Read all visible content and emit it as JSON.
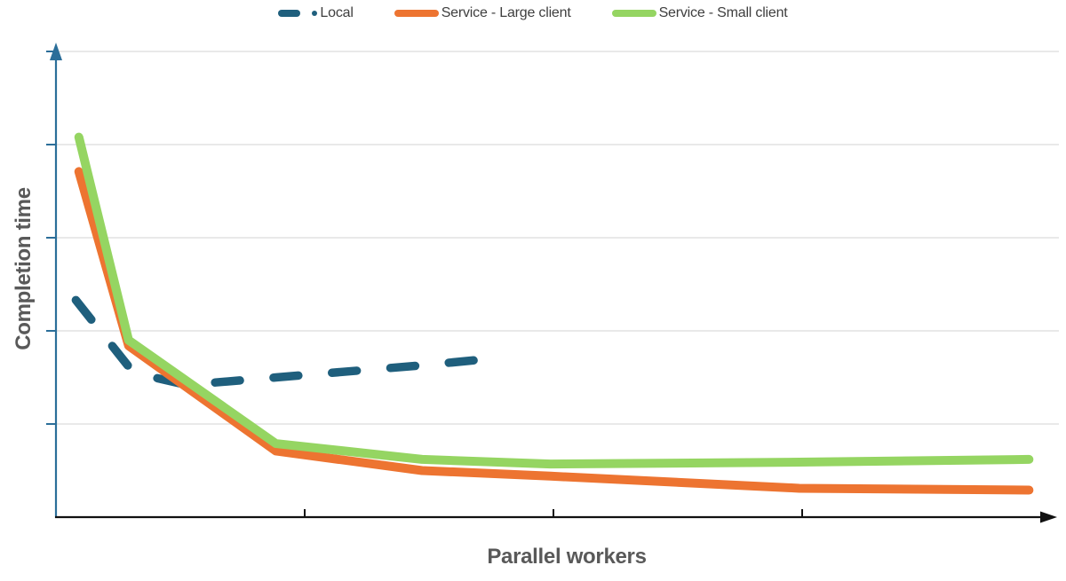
{
  "chart": {
    "legend": [
      {
        "label": "Local",
        "color": "#1F5F7D",
        "marker": "dash-dot"
      },
      {
        "label": "Service - Large client",
        "color": "#ED7431",
        "marker": "bar"
      },
      {
        "label": "Service - Small client",
        "color": "#95D562",
        "marker": "bar"
      }
    ],
    "y_axis_label": "Completion time",
    "x_axis_label": "Parallel workers"
  },
  "chart_data": {
    "type": "line",
    "title": "",
    "xlabel": "Parallel workers",
    "ylabel": "Completion time",
    "axis_tick_labels_shown": false,
    "x_units": "fraction of x-axis length (no numeric labels shown)",
    "y_units": "horizontal-gridline units above x-axis (no numeric labels shown)",
    "xlim": [
      0,
      1
    ],
    "ylim": [
      0,
      5.3
    ],
    "grid": "5 horizontal gridlines, one per unit",
    "x_ticks_at": [
      0.25,
      0.5,
      0.75
    ],
    "legend_position": "top-center",
    "series": [
      {
        "name": "Local",
        "color": "#1F5F7D",
        "line_style": "dashed",
        "points": [
          [
            0.02,
            2.33
          ],
          [
            0.078,
            1.55
          ],
          [
            0.131,
            1.42
          ],
          [
            0.221,
            1.5
          ],
          [
            0.368,
            1.63
          ],
          [
            0.446,
            1.71
          ]
        ]
      },
      {
        "name": "Service - Large client",
        "color": "#ED7431",
        "line_style": "solid",
        "points": [
          [
            0.023,
            3.71
          ],
          [
            0.073,
            1.84
          ],
          [
            0.221,
            0.71
          ],
          [
            0.368,
            0.5
          ],
          [
            0.497,
            0.44
          ],
          [
            0.747,
            0.31
          ],
          [
            0.978,
            0.29
          ]
        ]
      },
      {
        "name": "Service - Small client",
        "color": "#95D562",
        "line_style": "solid",
        "points": [
          [
            0.023,
            4.08
          ],
          [
            0.073,
            1.9
          ],
          [
            0.221,
            0.79
          ],
          [
            0.368,
            0.62
          ],
          [
            0.497,
            0.57
          ],
          [
            0.747,
            0.59
          ],
          [
            0.978,
            0.62
          ]
        ]
      }
    ]
  },
  "colors": {
    "y_axis": "#2B6E99",
    "x_axis": "#111111",
    "gridline": "#E2E2E2",
    "axis_title_text": "#595959",
    "legend_text": "#3F3F3F"
  }
}
